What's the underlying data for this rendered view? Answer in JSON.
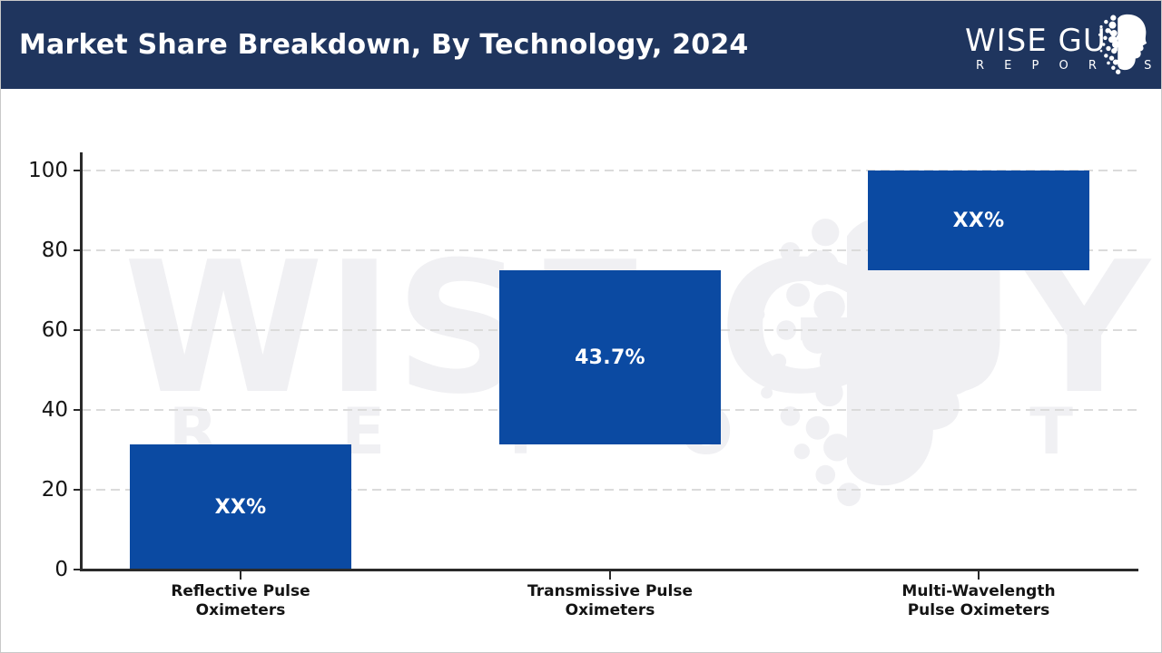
{
  "header": {
    "title": "Market Share Breakdown, By Technology, 2024",
    "bg_color": "#1F355E",
    "logo": {
      "name": "WISE GUY",
      "subtitle": "R E P O R T S"
    }
  },
  "watermark": {
    "line1": "WISE GUY",
    "line2": "R E P O R T S"
  },
  "chart_data": {
    "type": "bar",
    "variant": "waterfall-breakdown",
    "title": "Market Share Breakdown, By Technology, 2024",
    "categories": [
      [
        "Reflective Pulse",
        "Oximeters"
      ],
      [
        "Transmissive Pulse",
        "Oximeters"
      ],
      [
        "Multi-Wavelength",
        "Pulse Oximeters"
      ]
    ],
    "segments": [
      {
        "category": "Reflective Pulse Oximeters",
        "start": 0,
        "end": 31.3,
        "value_label": "XX%"
      },
      {
        "category": "Transmissive Pulse Oximeters",
        "start": 31.3,
        "end": 75,
        "value_label": "43.7%"
      },
      {
        "category": "Multi-Wavelength Pulse Oximeters",
        "start": 75,
        "end": 100,
        "value_label": "XX%"
      }
    ],
    "y_ticks": [
      0,
      20,
      40,
      60,
      80,
      100
    ],
    "ylim": [
      0,
      104
    ],
    "xlabel": "",
    "ylabel": "",
    "grid": {
      "visible": true,
      "style": "dashed",
      "color": "#DBDBDB"
    },
    "bar_color": "#0B4AA2",
    "bar_label_color": "#FFFFFF",
    "axis_color": "#2A2A2A",
    "tick_label_color": "#141414",
    "legend": "none"
  }
}
